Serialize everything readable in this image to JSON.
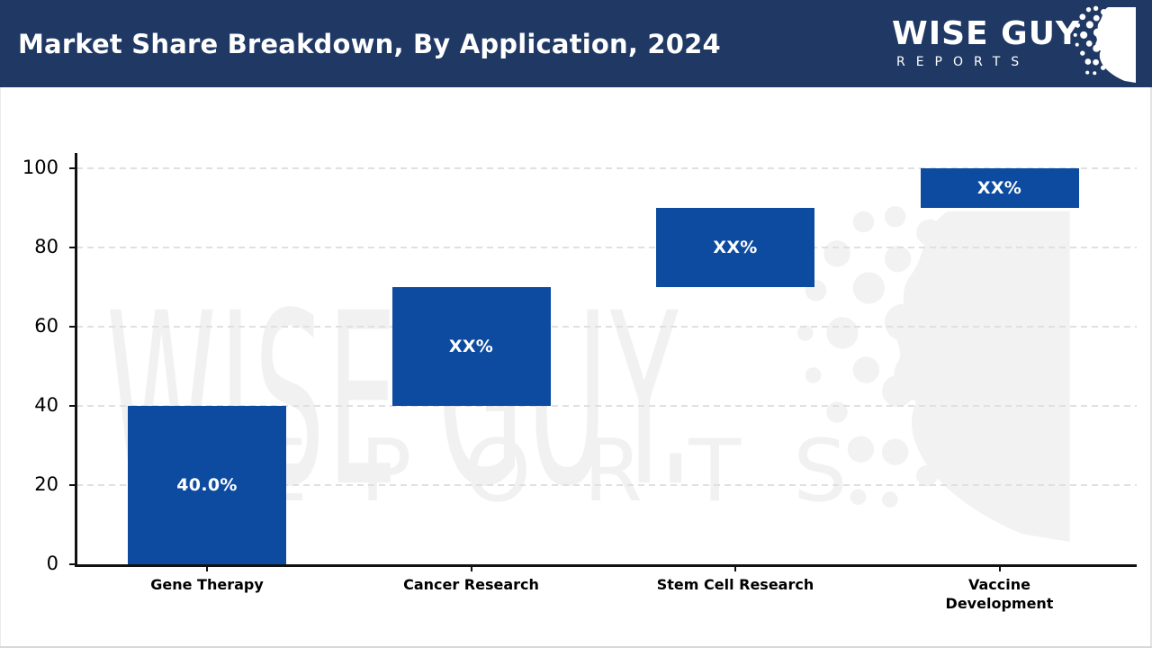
{
  "header": {
    "title": "Market Share Breakdown, By Application, 2024",
    "logo": {
      "wordmark": "WISE GUY",
      "subtext": "REPORTS"
    }
  },
  "watermark": {
    "line1": "WISE GUY.",
    "line2": "REPORTS"
  },
  "icons": {
    "logo_face": "dotted-head-profile",
    "watermark_face": "dotted-head-profile"
  },
  "colors": {
    "header_bg": "#1f3864",
    "bar": "#0c4ba0",
    "gridline": "#e0e0e0",
    "axis": "#111111",
    "watermark": "#f1f1f1",
    "bar_label_text": "#ffffff"
  },
  "chart_data": {
    "type": "bar",
    "subtype": "waterfall",
    "title": "Market Share Breakdown, By Application, 2024",
    "categories": [
      "Gene Therapy",
      "Cancer Research",
      "Stem Cell Research",
      "Vaccine Development"
    ],
    "segments": [
      {
        "category": "Gene Therapy",
        "start": 0,
        "end": 40,
        "value": 40,
        "label": "40.0%"
      },
      {
        "category": "Cancer Research",
        "start": 40,
        "end": 70,
        "value": 30,
        "label": "XX%"
      },
      {
        "category": "Stem Cell Research",
        "start": 70,
        "end": 90,
        "value": 20,
        "label": "XX%"
      },
      {
        "category": "Vaccine Development",
        "start": 90,
        "end": 100,
        "value": 10,
        "label": "XX%"
      }
    ],
    "ylim": [
      0,
      100
    ],
    "yticks": [
      0,
      20,
      40,
      60,
      80,
      100
    ],
    "xlabel": "",
    "ylabel": "",
    "bar_color": "#0c4ba0",
    "grid": "horizontal-dashed",
    "legend": "none"
  }
}
